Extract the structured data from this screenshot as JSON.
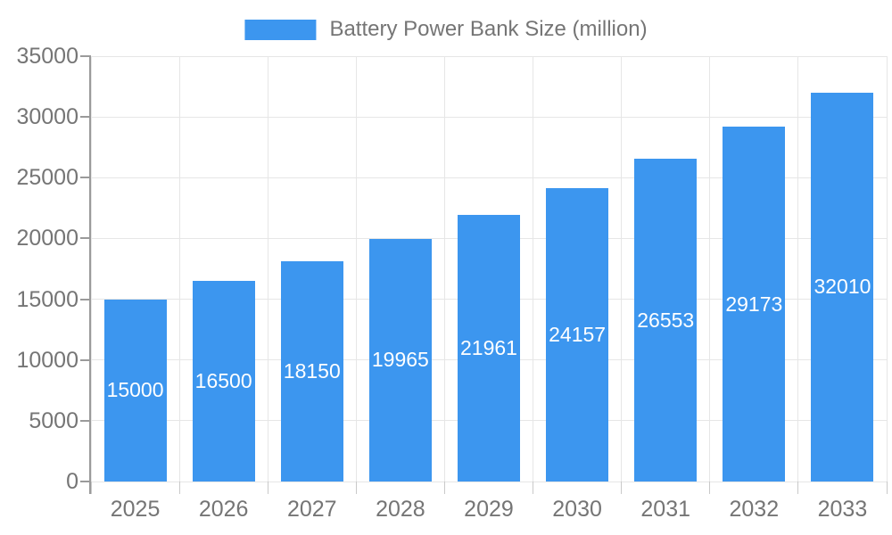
{
  "legend": {
    "position": "top",
    "items": [
      {
        "label": "Battery Power Bank Size (million)",
        "color": "#3C96EF"
      }
    ]
  },
  "chart_data": {
    "type": "bar",
    "title": "Battery Power Bank Size (million)",
    "categories": [
      "2025",
      "2026",
      "2027",
      "2028",
      "2029",
      "2030",
      "2031",
      "2032",
      "2033"
    ],
    "series": [
      {
        "name": "Battery Power Bank Size (million)",
        "color": "#3C96EF",
        "values": [
          15000,
          16500,
          18150,
          19965,
          21961,
          24157,
          26553,
          29173,
          32010
        ]
      }
    ],
    "bar_labels_visible": true,
    "bar_label_color": "#FFFFFF",
    "xlabel": "",
    "ylabel": "",
    "ylim": [
      0,
      35000
    ],
    "ytick_step": 5000,
    "yticks": [
      0,
      5000,
      10000,
      15000,
      20000,
      25000,
      30000,
      35000
    ],
    "grid": true,
    "legend_position": "top",
    "grid_color": "#E6E6E6",
    "axis_line_color": "#9A9A9A",
    "axis_text_color": "#757575",
    "background": "#FFFFFF"
  }
}
